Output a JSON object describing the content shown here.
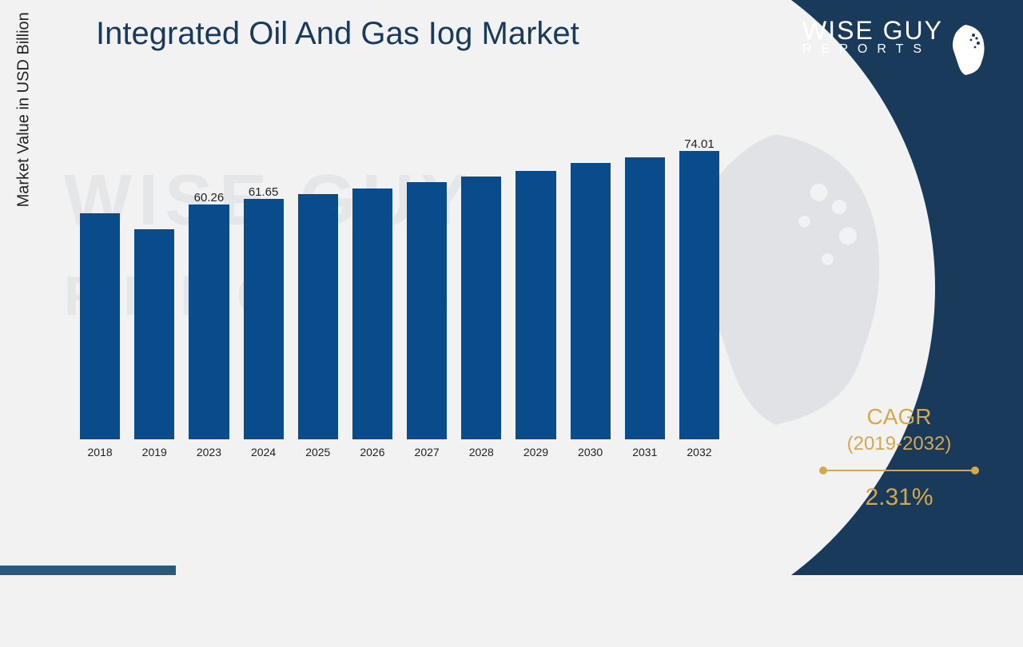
{
  "title": "Integrated Oil And Gas  Iog Market",
  "logo": {
    "main": "WISE GUY",
    "sub": "REPORTS"
  },
  "chart": {
    "type": "bar",
    "ylabel": "Market Value in USD Billion",
    "bar_color": "#0a4b8c",
    "background_color": "#f2f2f2",
    "ylim": [
      0,
      80
    ],
    "bar_width": 0.72,
    "title_fontsize": 40,
    "label_fontsize": 20,
    "tick_fontsize": 14,
    "categories": [
      "2018",
      "2019",
      "2023",
      "2024",
      "2025",
      "2026",
      "2027",
      "2028",
      "2029",
      "2030",
      "2031",
      "2032"
    ],
    "values": [
      58.0,
      54.0,
      60.26,
      61.65,
      63.0,
      64.5,
      66.0,
      67.5,
      69.0,
      71.0,
      72.5,
      74.01
    ],
    "value_labels": [
      "",
      "",
      "60.26",
      "61.65",
      "",
      "",
      "",
      "",
      "",
      "",
      "",
      "74.01"
    ]
  },
  "cagr": {
    "title": "CAGR",
    "years": "(2019-2032)",
    "value": "2.31%",
    "color": "#d4a84b"
  },
  "watermark": {
    "line1": "WISE GUY",
    "line2": "REPORTS"
  }
}
